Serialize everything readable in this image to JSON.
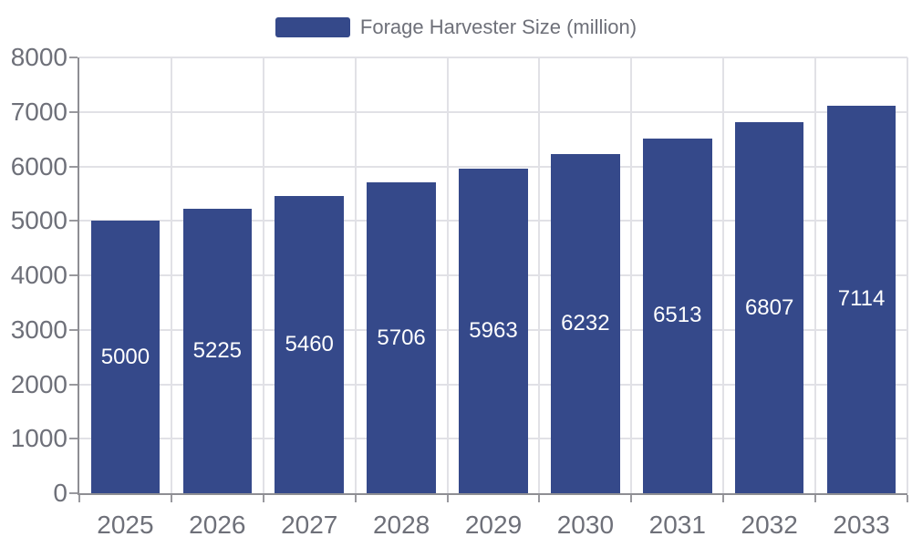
{
  "chart_data": {
    "type": "bar",
    "title": "Forage Harvester Size (million)",
    "categories": [
      "2025",
      "2026",
      "2027",
      "2028",
      "2029",
      "2030",
      "2031",
      "2032",
      "2033"
    ],
    "values": [
      5000,
      5225,
      5460,
      5706,
      5963,
      6232,
      6513,
      6807,
      7114
    ],
    "xlabel": "",
    "ylabel": "",
    "ylim": [
      0,
      8000
    ],
    "ytick_step": 1000,
    "y_tick_labels": [
      "0",
      "1000",
      "2000",
      "3000",
      "4000",
      "5000",
      "6000",
      "7000",
      "8000"
    ],
    "grid": "on",
    "legend": {
      "label": "Forage Harvester Size (million)",
      "position": "top-center",
      "marker": "rect"
    },
    "bar_label_position": "inside-center",
    "colors": {
      "bar_color": "#35498A",
      "bar_label_color": "#FFFFFF",
      "axis_text_color": "#6E7079",
      "legend_text_color": "#6E7079",
      "axis_line_color": "#8E8E93",
      "tick_color": "#99999E",
      "grid_color": "#E1E1E6",
      "background": "#FFFFFF"
    }
  }
}
